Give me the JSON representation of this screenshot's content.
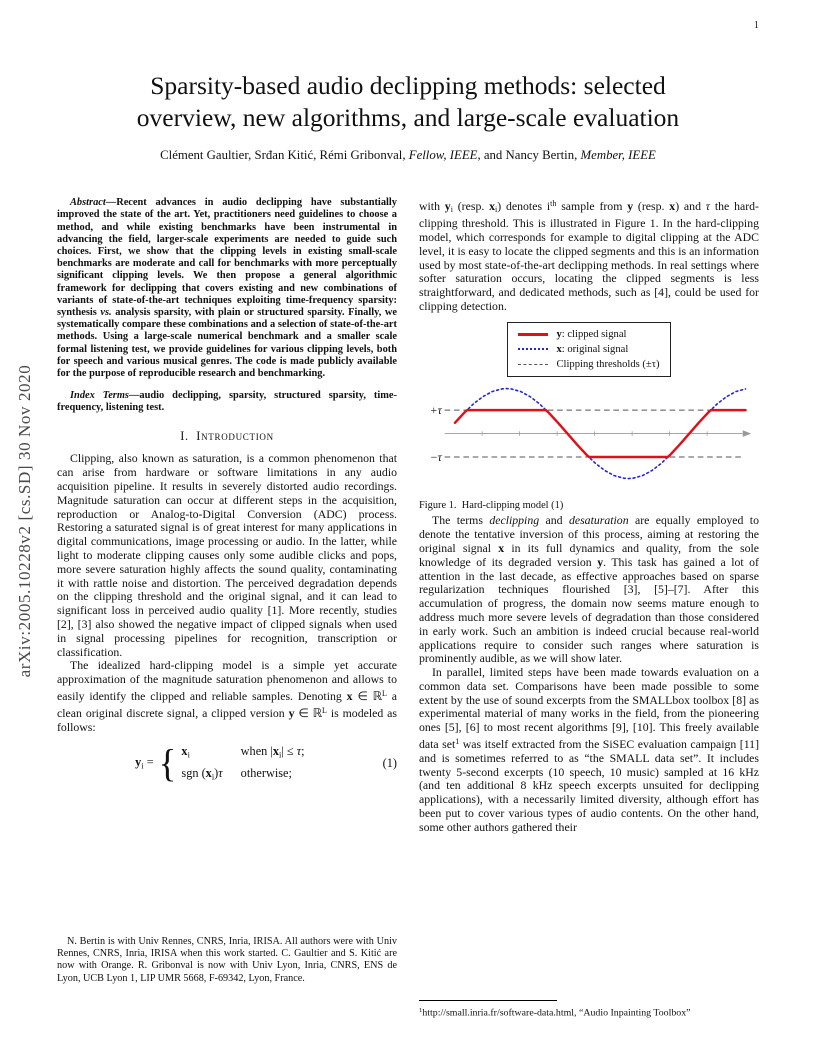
{
  "page": {
    "number": "1",
    "arxiv_label": "arXiv:2005.10228v2  [cs.SD]  30 Nov 2020"
  },
  "header": {
    "title_lines": {
      "line1": "Sparsity-based audio declipping methods: selected",
      "line2": "overview, new algorithms, and large-scale evaluation"
    },
    "authors_segments": [
      {
        "t": "Clément Gaultier, Srđan Kitić, Rémi Gribonval, "
      },
      {
        "t": "Fellow, IEEE,",
        "s": "i"
      },
      {
        "t": " and Nancy Bertin, "
      },
      {
        "t": "Member, IEEE",
        "s": "i"
      }
    ]
  },
  "abstract": {
    "segments": [
      {
        "t": "Abstract",
        "s": "i"
      },
      {
        "t": "—Recent advances in audio declipping have substantially improved the state of the art. Yet, practitioners need guidelines to choose a method, and while existing benchmarks have been instrumental in advancing the field, larger-scale experiments are needed to guide such choices. First, we show that the clipping levels in existing small-scale benchmarks are moderate and call for benchmarks with more perceptually significant clipping levels. We then propose a general algorithmic framework for declipping that covers existing and new combinations of variants of state-of-the-art techniques exploiting time-frequency sparsity: synthesis "
      },
      {
        "t": "vs.",
        "s": "i"
      },
      {
        "t": " analysis sparsity, with plain or structured sparsity. Finally, we systematically compare these combinations and a selection of state-of-the-art methods. Using a large-scale numerical benchmark and a smaller scale formal listening test, we provide guidelines for various clipping levels, both for speech and various musical genres. The code is made publicly available for the purpose of reproducible research and benchmarking."
      }
    ]
  },
  "index_terms": {
    "segments": [
      {
        "t": "Index Terms",
        "s": "i"
      },
      {
        "t": "—audio declipping, sparsity, structured sparsity, time-frequency, listening test."
      }
    ]
  },
  "introduction": {
    "heading": "I.  Introduction",
    "para1": "Clipping, also known as saturation, is a common phenomenon that can arise from hardware or software limitations in any audio acquisition pipeline. It results in severely distorted audio recordings. Magnitude saturation can occur at different steps in the acquisition, reproduction or Analog-to-Digital Conversion (ADC) process. Restoring a saturated signal is of great interest for many applications in digital communications, image processing or audio. In the latter, while light to moderate clipping causes only some audible clicks and pops, more severe saturation highly affects the sound quality, contaminating it with rattle noise and distortion. The perceived degradation depends on the clipping threshold and the original signal, and it can lead to significant loss in perceived audio quality [1]. More recently, studies [2], [3] also showed the negative impact of clipped signals when used in signal processing pipelines for recognition, transcription or classification.",
    "para2_segments": [
      {
        "t": "The idealized hard-clipping model is a simple yet accurate approximation of the magnitude saturation phenomenon and allows to easily identify the clipped and reliable samples. Denoting "
      },
      {
        "t": "x",
        "s": "b"
      },
      {
        "t": " ∈ ℝ"
      },
      {
        "t": "L",
        "s": "sup"
      },
      {
        "t": " a clean original discrete signal, a clipped version "
      },
      {
        "t": "y",
        "s": "b"
      },
      {
        "t": " ∈ ℝ"
      },
      {
        "t": "L",
        "s": "sup"
      },
      {
        "t": " is modeled as follows:"
      }
    ]
  },
  "equation": {
    "lhs": [
      {
        "t": "y",
        "s": "b"
      },
      {
        "t": "i",
        "s": "sub"
      },
      {
        "t": " ="
      }
    ],
    "case1_value": [
      {
        "t": "x",
        "s": "b"
      },
      {
        "t": "i",
        "s": "sub"
      }
    ],
    "case1_condition": [
      {
        "t": "when |"
      },
      {
        "t": "x",
        "s": "b"
      },
      {
        "t": "i",
        "s": "sub"
      },
      {
        "t": "| ≤ "
      },
      {
        "t": "τ",
        "s": "i"
      },
      {
        "t": ";"
      }
    ],
    "case2_value": [
      {
        "t": "sgn ("
      },
      {
        "t": "x",
        "s": "b"
      },
      {
        "t": "i",
        "s": "sub"
      },
      {
        "t": ")"
      },
      {
        "t": "τ",
        "s": "i"
      }
    ],
    "case2_condition": [
      {
        "t": "otherwise;"
      }
    ],
    "number": "(1)"
  },
  "right_column": {
    "para1_segments": [
      {
        "t": "with "
      },
      {
        "t": "y",
        "s": "b"
      },
      {
        "t": "i",
        "s": "sub"
      },
      {
        "t": " (resp. "
      },
      {
        "t": "x",
        "s": "b"
      },
      {
        "t": "i",
        "s": "sub"
      },
      {
        "t": ") denotes i"
      },
      {
        "t": "th",
        "s": "sup"
      },
      {
        "t": " sample from "
      },
      {
        "t": "y",
        "s": "b"
      },
      {
        "t": " (resp. "
      },
      {
        "t": "x",
        "s": "b"
      },
      {
        "t": ") and "
      },
      {
        "t": "τ",
        "s": "i"
      },
      {
        "t": " the hard-clipping threshold. This is illustrated in Figure 1. In the hard-clipping model, which corresponds for example to digital clipping at the ADC level, it is easy to locate the clipped segments and this is an information used by most state-of-the-art declipping methods. In real settings where softer saturation occurs, locating the clipped segments is less straightforward, and dedicated methods, such as [4], could be used for clipping detection."
      }
    ],
    "para2_segments": [
      {
        "t": "The terms "
      },
      {
        "t": "declipping",
        "s": "i"
      },
      {
        "t": " and "
      },
      {
        "t": "desaturation",
        "s": "i"
      },
      {
        "t": " are equally employed to denote the tentative inversion of this process, aiming at restoring the original signal "
      },
      {
        "t": "x",
        "s": "b"
      },
      {
        "t": " in its full dynamics and quality, from the sole knowledge of its degraded version "
      },
      {
        "t": "y",
        "s": "b"
      },
      {
        "t": ". This task has gained a lot of attention in the last decade, as effective approaches based on sparse regularization techniques flourished [3], [5]–[7]. After this accumulation of progress, the domain now seems mature enough to address much more severe levels of degradation than those considered in early work. Such an ambition is indeed crucial because real-world applications require to consider such ranges where saturation is prominently audible, as we will show later."
      }
    ],
    "para3_segments": [
      {
        "t": "In parallel, limited steps have been made towards evaluation on a common data set. Comparisons have been made possible to some extent by the use of sound excerpts from the SMALLbox toolbox [8] as experimental material of many works in the field, from the pioneering ones [5], [6] to most recent algorithms [9], [10]. This freely available data set"
      },
      {
        "t": "1",
        "s": "sup"
      },
      {
        "t": " was itself extracted from the SiSEC evaluation campaign [11] and is sometimes referred to as “the SMALL data set”. It includes twenty 5-second excerpts (10 speech, 10 music) sampled at 16 kHz (and ten additional 8 kHz speech excerpts unsuited for declipping applications), with a necessarily limited diversity, although effort has been put to cover various types of audio contents. On the other hand, some other authors gathered their"
      }
    ]
  },
  "figure1": {
    "legend": [
      {
        "segments": [
          {
            "t": "y",
            "s": "b"
          },
          {
            "t": ": clipped signal"
          }
        ]
      },
      {
        "segments": [
          {
            "t": "x",
            "s": "b"
          },
          {
            "t": ": original signal"
          }
        ]
      },
      {
        "segments": [
          {
            "t": "Clipping thresholds (±τ)"
          }
        ]
      }
    ],
    "y_axis_labels": {
      "plus": "+τ",
      "minus": "−τ"
    },
    "caption": "Figure 1.  Hard-clipping model (1)"
  },
  "chart_data": {
    "type": "line",
    "title": "Hard-clipping model (1)",
    "xlabel": "",
    "ylabel": "",
    "y_ticks": [
      "+τ",
      "−τ"
    ],
    "legend_position": "top center",
    "series": [
      {
        "name": "y: clipped signal",
        "style": "red solid",
        "description": "sine wave clamped to the range [−τ, +τ]"
      },
      {
        "name": "x: original signal",
        "style": "blue dotted",
        "description": "sine wave, amplitude ≈ 1.9τ, about 1.15 periods shown"
      },
      {
        "name": "Clipping thresholds (±τ)",
        "style": "black dashed",
        "values": [
          "+τ",
          "−τ"
        ]
      }
    ]
  },
  "footnotes": {
    "left": "N. Bertin is with Univ Rennes, CNRS, Inria, IRISA. All authors were with Univ Rennes, CNRS, Inria, IRISA when this work started. C. Gaultier and S. Kitić are now with Orange. R. Gribonval is now with Univ Lyon, Inria, CNRS, ENS de Lyon, UCB Lyon 1, LIP UMR 5668, F-69342, Lyon, France.",
    "right_segments": [
      {
        "t": "1",
        "s": "sup"
      },
      {
        "t": "http://small.inria.fr/software-data.html, “Audio Inpainting Toolbox”"
      }
    ]
  }
}
